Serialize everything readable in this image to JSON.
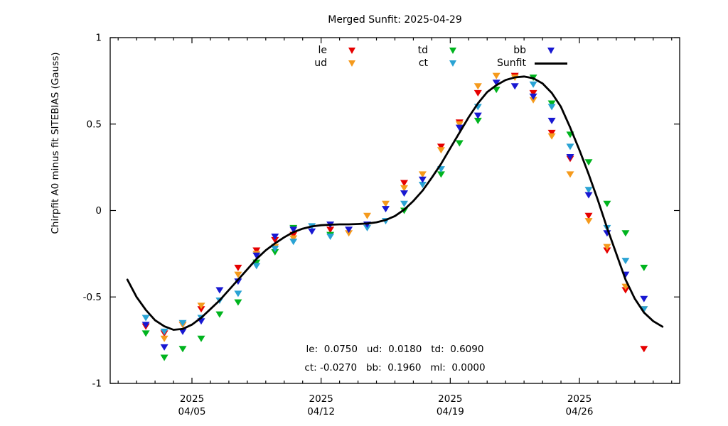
{
  "title": "Merged Sunfit: 2025-04-29",
  "y_axis_label": "Chirpfit A0 minus fit SITEBIAS (Gauss)",
  "stats": {
    "line1": "le:  0.0750   ud:  0.0180   td:  0.6090",
    "line2": "ct: -0.0270   bb:  0.1960   ml:  0.0000"
  },
  "legend": {
    "items": [
      {
        "label": "le",
        "marker": "triangle-down",
        "color": "#e60000"
      },
      {
        "label": "td",
        "marker": "triangle-down",
        "color": "#00b41e"
      },
      {
        "label": "bb",
        "marker": "triangle-down",
        "color": "#1818d2"
      },
      {
        "label": "ud",
        "marker": "triangle-down",
        "color": "#f59a1c"
      },
      {
        "label": "ct",
        "marker": "triangle-down",
        "color": "#2aa3d4"
      },
      {
        "label": "Sunfit",
        "marker": "line",
        "color": "#000000"
      }
    ]
  },
  "chart_data": {
    "type": "scatter",
    "title": "Merged Sunfit: 2025-04-29",
    "xlabel": "",
    "ylabel": "Chirpfit A0 minus fit SITEBIAS (Gauss)",
    "x_unit": "day of April 2025 (fractional)",
    "x_axis": {
      "range": [
        0.6,
        31.4
      ],
      "minor_tick_every_days": 1,
      "major_ticks": [
        {
          "day": 5,
          "lines": [
            "2025",
            "04/05"
          ]
        },
        {
          "day": 12,
          "lines": [
            "2025",
            "04/12"
          ]
        },
        {
          "day": 19,
          "lines": [
            "2025",
            "04/19"
          ]
        },
        {
          "day": 26,
          "lines": [
            "2025",
            "04/26"
          ]
        }
      ]
    },
    "y_axis": {
      "range": [
        -1,
        1
      ],
      "ticks": [
        {
          "v": -1,
          "label": "-1"
        },
        {
          "v": -0.5,
          "label": "-0.5"
        },
        {
          "v": 0,
          "label": "0"
        },
        {
          "v": 0.5,
          "label": "0.5"
        },
        {
          "v": 1,
          "label": "1"
        }
      ]
    },
    "series": [
      {
        "name": "le",
        "color": "#e60000",
        "marker": "triangle-down",
        "points": [
          [
            2.5,
            -0.67
          ],
          [
            3.5,
            -0.71
          ],
          [
            4.5,
            -0.66
          ],
          [
            5.5,
            -0.57
          ],
          [
            7.5,
            -0.33
          ],
          [
            8.5,
            -0.23
          ],
          [
            9.5,
            -0.17
          ],
          [
            10.5,
            -0.14
          ],
          [
            12.5,
            -0.11
          ],
          [
            16.5,
            0.16
          ],
          [
            18.5,
            0.37
          ],
          [
            19.5,
            0.51
          ],
          [
            20.5,
            0.68
          ],
          [
            22.5,
            0.78
          ],
          [
            23.5,
            0.68
          ],
          [
            24.5,
            0.45
          ],
          [
            25.5,
            0.3
          ],
          [
            26.5,
            -0.03
          ],
          [
            27.5,
            -0.23
          ],
          [
            28.5,
            -0.46
          ],
          [
            29.5,
            -0.8
          ]
        ]
      },
      {
        "name": "ud",
        "color": "#f59a1c",
        "marker": "triangle-down",
        "points": [
          [
            3.5,
            -0.74
          ],
          [
            4.5,
            -0.66
          ],
          [
            5.5,
            -0.55
          ],
          [
            7.5,
            -0.37
          ],
          [
            8.5,
            -0.25
          ],
          [
            9.5,
            -0.21
          ],
          [
            10.5,
            -0.16
          ],
          [
            13.5,
            -0.13
          ],
          [
            14.5,
            -0.03
          ],
          [
            15.5,
            0.04
          ],
          [
            16.5,
            0.13
          ],
          [
            17.5,
            0.21
          ],
          [
            18.5,
            0.35
          ],
          [
            19.5,
            0.5
          ],
          [
            20.5,
            0.72
          ],
          [
            21.5,
            0.78
          ],
          [
            22.5,
            0.77
          ],
          [
            23.5,
            0.64
          ],
          [
            24.5,
            0.43
          ],
          [
            25.5,
            0.21
          ],
          [
            26.5,
            -0.06
          ],
          [
            27.5,
            -0.21
          ],
          [
            28.5,
            -0.44
          ],
          [
            29.5,
            -0.57
          ]
        ]
      },
      {
        "name": "td",
        "color": "#00b41e",
        "marker": "triangle-down",
        "points": [
          [
            2.5,
            -0.71
          ],
          [
            3.5,
            -0.85
          ],
          [
            4.5,
            -0.8
          ],
          [
            5.5,
            -0.74
          ],
          [
            6.5,
            -0.6
          ],
          [
            7.5,
            -0.53
          ],
          [
            8.5,
            -0.3
          ],
          [
            9.5,
            -0.24
          ],
          [
            10.5,
            -0.1
          ],
          [
            12.5,
            -0.14
          ],
          [
            16.5,
            0.0
          ],
          [
            18.5,
            0.21
          ],
          [
            19.5,
            0.39
          ],
          [
            20.5,
            0.52
          ],
          [
            21.5,
            0.7
          ],
          [
            23.5,
            0.77
          ],
          [
            24.5,
            0.62
          ],
          [
            25.5,
            0.44
          ],
          [
            26.5,
            0.28
          ],
          [
            27.5,
            0.04
          ],
          [
            28.5,
            -0.13
          ],
          [
            29.5,
            -0.33
          ]
        ]
      },
      {
        "name": "ct",
        "color": "#2aa3d4",
        "marker": "triangle-down",
        "points": [
          [
            2.5,
            -0.62
          ],
          [
            3.5,
            -0.7
          ],
          [
            4.5,
            -0.65
          ],
          [
            5.5,
            -0.62
          ],
          [
            6.5,
            -0.52
          ],
          [
            7.5,
            -0.48
          ],
          [
            8.5,
            -0.32
          ],
          [
            9.5,
            -0.22
          ],
          [
            10.5,
            -0.18
          ],
          [
            11.5,
            -0.09
          ],
          [
            12.5,
            -0.15
          ],
          [
            14.5,
            -0.1
          ],
          [
            15.5,
            -0.06
          ],
          [
            16.5,
            0.04
          ],
          [
            17.5,
            0.15
          ],
          [
            18.5,
            0.24
          ],
          [
            20.5,
            0.6
          ],
          [
            23.5,
            0.73
          ],
          [
            24.5,
            0.6
          ],
          [
            25.5,
            0.37
          ],
          [
            26.5,
            0.12
          ],
          [
            27.5,
            -0.1
          ],
          [
            28.5,
            -0.29
          ],
          [
            29.5,
            -0.57
          ]
        ]
      },
      {
        "name": "bb",
        "color": "#1818d2",
        "marker": "triangle-down",
        "points": [
          [
            2.5,
            -0.66
          ],
          [
            3.5,
            -0.79
          ],
          [
            4.5,
            -0.7
          ],
          [
            5.5,
            -0.64
          ],
          [
            6.5,
            -0.46
          ],
          [
            7.5,
            -0.41
          ],
          [
            8.5,
            -0.26
          ],
          [
            9.5,
            -0.15
          ],
          [
            10.5,
            -0.11
          ],
          [
            11.5,
            -0.12
          ],
          [
            12.5,
            -0.08
          ],
          [
            13.5,
            -0.11
          ],
          [
            14.5,
            -0.08
          ],
          [
            15.5,
            0.01
          ],
          [
            16.5,
            0.1
          ],
          [
            17.5,
            0.18
          ],
          [
            19.5,
            0.48
          ],
          [
            20.5,
            0.55
          ],
          [
            21.5,
            0.74
          ],
          [
            22.5,
            0.72
          ],
          [
            23.5,
            0.66
          ],
          [
            24.5,
            0.52
          ],
          [
            25.5,
            0.31
          ],
          [
            26.5,
            0.09
          ],
          [
            27.5,
            -0.13
          ],
          [
            28.5,
            -0.37
          ],
          [
            29.5,
            -0.51
          ]
        ]
      }
    ],
    "fit": {
      "name": "Sunfit",
      "color": "#000000",
      "points": [
        [
          1.5,
          -0.4
        ],
        [
          2,
          -0.5
        ],
        [
          2.5,
          -0.575
        ],
        [
          3,
          -0.635
        ],
        [
          3.5,
          -0.67
        ],
        [
          4,
          -0.69
        ],
        [
          4.5,
          -0.685
        ],
        [
          5,
          -0.66
        ],
        [
          5.5,
          -0.62
        ],
        [
          6,
          -0.57
        ],
        [
          6.5,
          -0.52
        ],
        [
          7,
          -0.46
        ],
        [
          7.5,
          -0.4
        ],
        [
          8,
          -0.34
        ],
        [
          8.5,
          -0.28
        ],
        [
          9,
          -0.23
        ],
        [
          9.5,
          -0.19
        ],
        [
          10,
          -0.155
        ],
        [
          10.5,
          -0.125
        ],
        [
          11,
          -0.105
        ],
        [
          11.5,
          -0.092
        ],
        [
          12,
          -0.085
        ],
        [
          12.5,
          -0.082
        ],
        [
          13,
          -0.08
        ],
        [
          13.5,
          -0.08
        ],
        [
          14,
          -0.078
        ],
        [
          14.5,
          -0.075
        ],
        [
          15,
          -0.068
        ],
        [
          15.5,
          -0.055
        ],
        [
          16,
          -0.032
        ],
        [
          16.5,
          0.005
        ],
        [
          17,
          0.055
        ],
        [
          17.5,
          0.115
        ],
        [
          18,
          0.19
        ],
        [
          18.5,
          0.27
        ],
        [
          19,
          0.36
        ],
        [
          19.5,
          0.45
        ],
        [
          20,
          0.54
        ],
        [
          20.5,
          0.62
        ],
        [
          21,
          0.685
        ],
        [
          21.5,
          0.725
        ],
        [
          22,
          0.755
        ],
        [
          22.5,
          0.77
        ],
        [
          23,
          0.775
        ],
        [
          23.5,
          0.765
        ],
        [
          24,
          0.735
        ],
        [
          24.5,
          0.68
        ],
        [
          25,
          0.6
        ],
        [
          25.5,
          0.48
        ],
        [
          26,
          0.35
        ],
        [
          26.5,
          0.21
        ],
        [
          27,
          0.06
        ],
        [
          27.5,
          -0.1
        ],
        [
          28,
          -0.25
        ],
        [
          28.5,
          -0.4
        ],
        [
          29,
          -0.51
        ],
        [
          29.5,
          -0.59
        ],
        [
          30,
          -0.64
        ],
        [
          30.5,
          -0.672
        ]
      ]
    },
    "grid": false,
    "legend_position": "top-center-inside"
  }
}
